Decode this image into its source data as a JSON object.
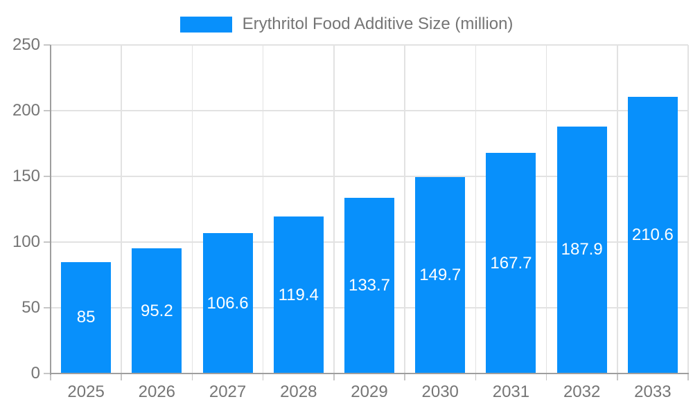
{
  "legend": {
    "label": "Erythritol Food Additive Size (million)"
  },
  "chart_data": {
    "type": "bar",
    "title": "Erythritol Food Additive Size (million)",
    "categories": [
      "2025",
      "2026",
      "2027",
      "2028",
      "2029",
      "2030",
      "2031",
      "2032",
      "2033"
    ],
    "values": [
      85,
      95.2,
      106.6,
      119.4,
      133.7,
      149.7,
      167.7,
      187.9,
      210.6
    ],
    "value_labels": [
      "85",
      "95.2",
      "106.6",
      "119.4",
      "133.7",
      "149.7",
      "167.7",
      "187.9",
      "210.6"
    ],
    "series_name": "Erythritol Food Additive Size (million)",
    "xlabel": "",
    "ylabel": "",
    "ylim": [
      0,
      250
    ],
    "yticks": [
      0,
      50,
      100,
      150,
      200,
      250
    ],
    "grid": true,
    "legend_position": "top-center",
    "value_label_position": "inside-center"
  },
  "style": {
    "bar_color": "#0890FB",
    "value_label_color": "#FFFFFF",
    "text_color": "#757575",
    "grid_color": "#E2E2E2",
    "axis_line_color": "#9E9E9E",
    "tick_color": "#C6C6C6",
    "background": "#FFFFFF"
  }
}
